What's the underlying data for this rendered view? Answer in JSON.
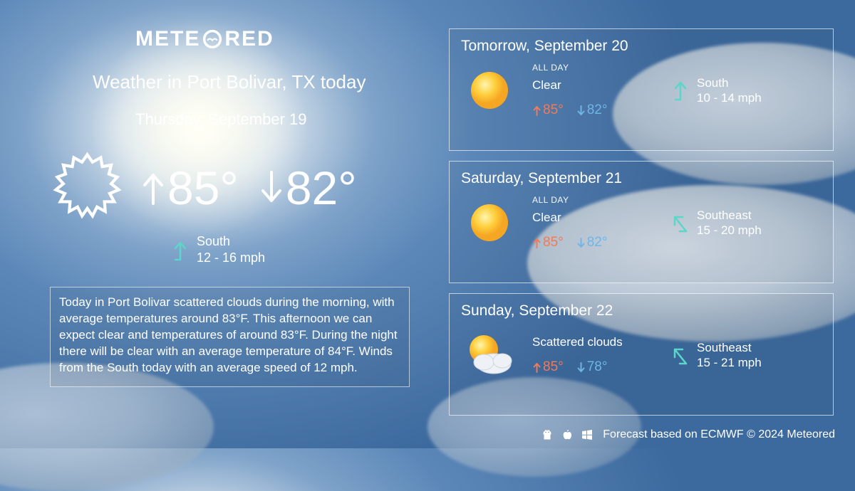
{
  "brand": {
    "pre": "METE",
    "post": "RED"
  },
  "title": "Weather in Port Bolivar, TX today",
  "date": "Thursday, September 19",
  "today": {
    "high": "85°",
    "low": "82°",
    "wind_dir": "South",
    "wind_speed": "12 - 16 mph"
  },
  "summary": "Today in Port Bolivar scattered clouds during the morning, with average temperatures around 83°F. This afternoon we can expect clear and temperatures of around 83°F. During the night there will be clear with an average temperature of 84°F. Winds from the South today with an average speed of 12 mph.",
  "cards": [
    {
      "title": "Tomorrow, September 20",
      "allday": "ALL DAY",
      "cond": "Clear",
      "icon": "sun",
      "high": "85°",
      "low": "82°",
      "wind_dir": "South",
      "wind_speed": "10 - 14 mph",
      "wind_arrow": "n"
    },
    {
      "title": "Saturday, September 21",
      "allday": "ALL DAY",
      "cond": "Clear",
      "icon": "sun",
      "high": "85°",
      "low": "82°",
      "wind_dir": "Southeast",
      "wind_speed": "15 - 20 mph",
      "wind_arrow": "nw"
    },
    {
      "title": "Sunday, September 22",
      "allday": "",
      "cond": "Scattered clouds",
      "icon": "partly",
      "high": "85°",
      "low": "78°",
      "wind_dir": "Southeast",
      "wind_speed": "15 - 21 mph",
      "wind_arrow": "nw"
    }
  ],
  "footer": "Forecast based on ECMWF © 2024 Meteored",
  "colors": {
    "hi": "#f07a5a",
    "lo": "#6fb6e6",
    "teal": "#5bd6c8"
  }
}
